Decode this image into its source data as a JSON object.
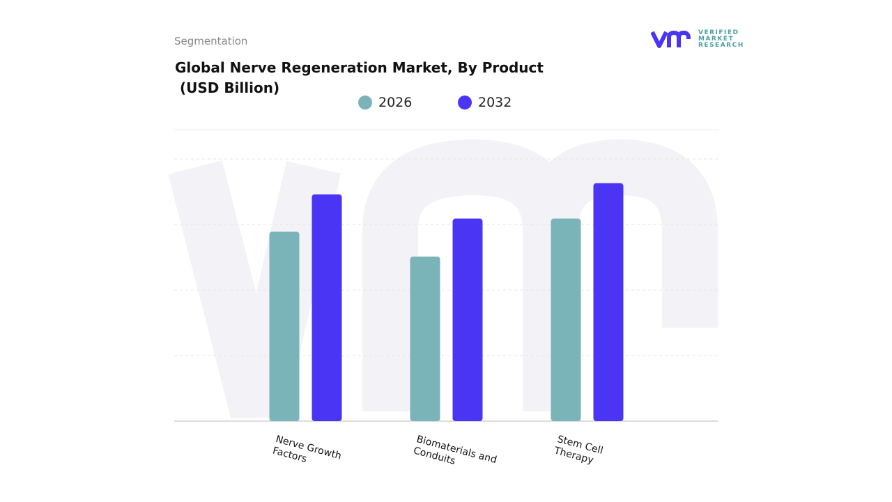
{
  "header": {
    "segment_label": "Segmentation",
    "title": "Global Nerve Regeneration Market, By Product\n (USD Billion)"
  },
  "logo": {
    "line1": "VERIFIED",
    "line2": "MARKET",
    "line3": "RESEARCH",
    "mark": "vmr"
  },
  "chart_data": {
    "type": "bar",
    "title": "Global Nerve Regeneration Market, By Product (USD Billion)",
    "categories": [
      "Nerve Growth\nFactors",
      "Biomaterials and\nConduits",
      "Stem Cell\nTherapy"
    ],
    "series": [
      {
        "name": "2026",
        "color": "#7ab3b8",
        "values": [
          2.89,
          2.51,
          3.09
        ]
      },
      {
        "name": "2032",
        "color": "#4a35f5",
        "values": [
          3.46,
          3.09,
          3.63
        ]
      }
    ],
    "ylim": [
      0,
      4
    ],
    "grid": true,
    "legend": "top-center",
    "xlabel": "",
    "ylabel": ""
  }
}
